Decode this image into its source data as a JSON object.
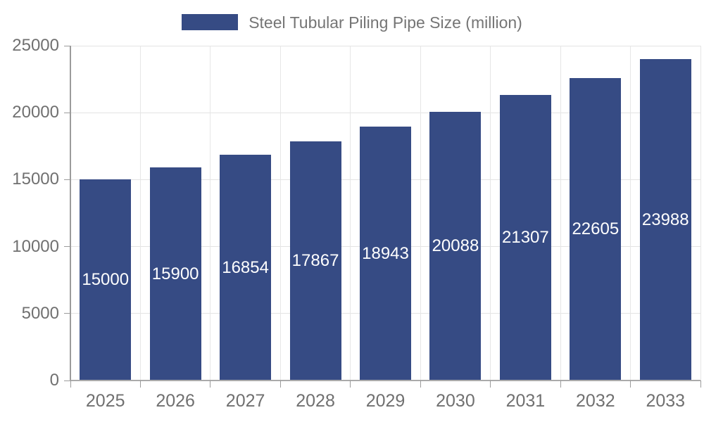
{
  "legend": {
    "label": "Steel Tubular Piling Pipe Size (million)"
  },
  "chart_data": {
    "type": "bar",
    "title": "Steel Tubular Piling Pipe Size (million)",
    "categories": [
      "2025",
      "2026",
      "2027",
      "2028",
      "2029",
      "2030",
      "2031",
      "2032",
      "2033"
    ],
    "series": [
      {
        "name": "Steel Tubular Piling Pipe Size (million)",
        "values": [
          15000,
          15900,
          16854,
          17867,
          18943,
          20088,
          21307,
          22605,
          23988
        ]
      }
    ],
    "xlabel": "",
    "ylabel": "",
    "ylim": [
      0,
      25000
    ],
    "yticks": [
      0,
      5000,
      10000,
      15000,
      20000,
      25000
    ],
    "grid": true,
    "legend_position": "top-center",
    "bar_labels_inside": true,
    "colors": {
      "bar": "#364b84",
      "value_label": "#ffffff",
      "axis_text": "#707070",
      "axis_line": "#9b9b9b",
      "gridline": "#e3e3e3",
      "background": "#ffffff"
    }
  }
}
